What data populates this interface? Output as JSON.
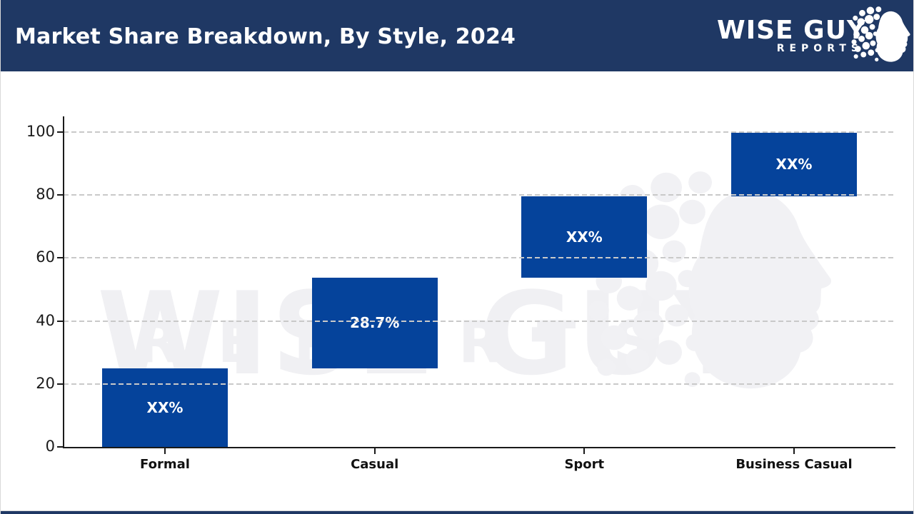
{
  "header": {
    "title": "Market Share Breakdown, By Style, 2024",
    "logo": {
      "line1": "WISE GUY",
      "line2": "REPORTS"
    }
  },
  "watermark": {
    "line1": "WISE GUY",
    "line2": "REPORTS"
  },
  "chart_data": {
    "type": "bar",
    "subtype": "waterfall",
    "title": "Market Share Breakdown, By Style, 2024",
    "categories": [
      "Formal",
      "Casual",
      "Sport",
      "Business Casual"
    ],
    "segments": [
      {
        "category": "Formal",
        "start": 0,
        "end": 25,
        "label": "XX%"
      },
      {
        "category": "Casual",
        "start": 25,
        "end": 53.7,
        "label": "28.7%"
      },
      {
        "category": "Sport",
        "start": 53.7,
        "end": 79.6,
        "label": "XX%"
      },
      {
        "category": "Business Casual",
        "start": 79.6,
        "end": 99.8,
        "label": "XX%"
      }
    ],
    "yticks": [
      0,
      20,
      40,
      60,
      80,
      100
    ],
    "ylim": [
      0,
      105
    ],
    "xlabel": "",
    "ylabel": "",
    "grid": "dashed-horizontal",
    "legend": "none"
  },
  "colors": {
    "header_bg": "#1f3864",
    "footer_bg": "#1f3864",
    "bar": "#05439b",
    "bar_label": "#ffffff",
    "grid": "#c9c9c9",
    "axis": "#1a1a1a",
    "watermark": "#f0f0f3"
  }
}
